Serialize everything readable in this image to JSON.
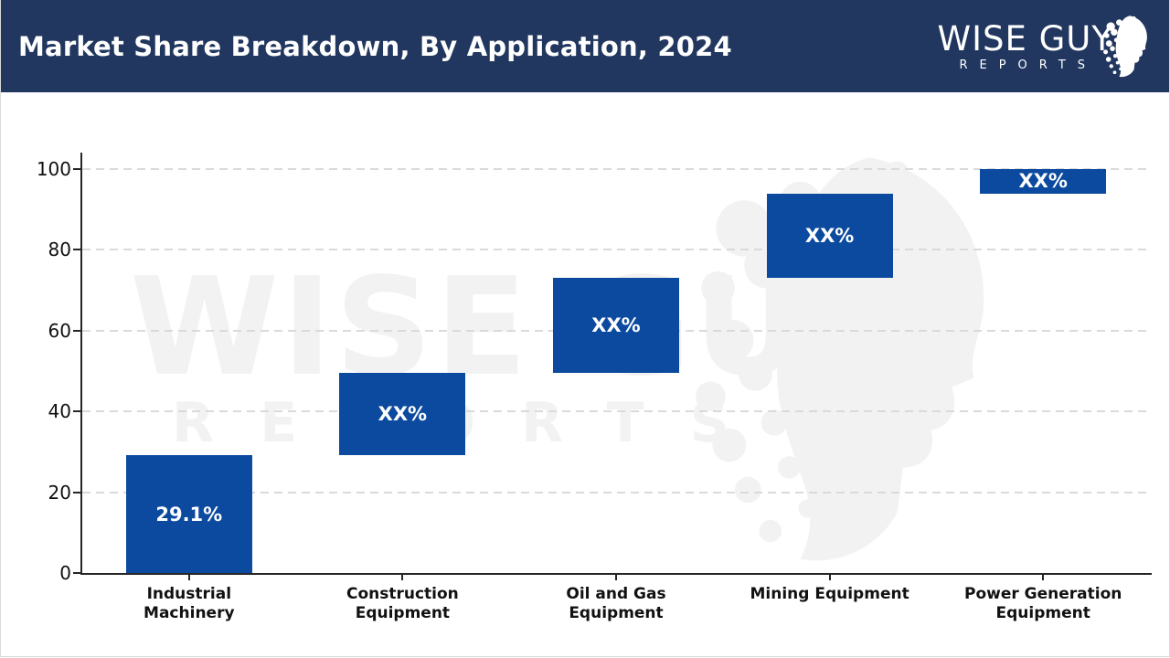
{
  "page": {
    "background": "#ffffff",
    "frame_border_color": "#d9d9d9"
  },
  "header": {
    "bg_color": "#21375f",
    "title": "Market Share Breakdown, By Application, 2024",
    "logo": {
      "brand": "WISE GUY",
      "sub": "REPORTS"
    }
  },
  "watermark": {
    "brand": "WISE GUY",
    "sub": "REPORTS"
  },
  "chart_data": {
    "type": "bar",
    "variant": "waterfall-floating-bars",
    "title": "Market Share Breakdown, By Application, 2024",
    "xlabel": "",
    "ylabel": "",
    "categories": [
      "Industrial Machinery",
      "Construction Equipment",
      "Oil and Gas Equipment",
      "Mining Equipment",
      "Power Generation Equipment"
    ],
    "segments": [
      {
        "category": "Industrial Machinery",
        "start": 0,
        "end": 29.1,
        "label": "29.1%"
      },
      {
        "category": "Construction Equipment",
        "start": 29.1,
        "end": 49.5,
        "label": "XX%"
      },
      {
        "category": "Oil and Gas Equipment",
        "start": 49.5,
        "end": 73.0,
        "label": "XX%"
      },
      {
        "category": "Mining Equipment",
        "start": 73.0,
        "end": 94.0,
        "label": "XX%"
      },
      {
        "category": "Power Generation Equipment",
        "start": 94.0,
        "end": 100.0,
        "label": "XX%"
      }
    ],
    "yticks": [
      0,
      20,
      40,
      60,
      80,
      100
    ],
    "ylim": [
      0,
      104
    ],
    "grid": "horizontal-dashed",
    "legend": "none",
    "bar_color": "#0c4a9f",
    "bar_label_color": "#ffffff",
    "axis_color": "#262626",
    "gridline_color": "#dadada"
  }
}
